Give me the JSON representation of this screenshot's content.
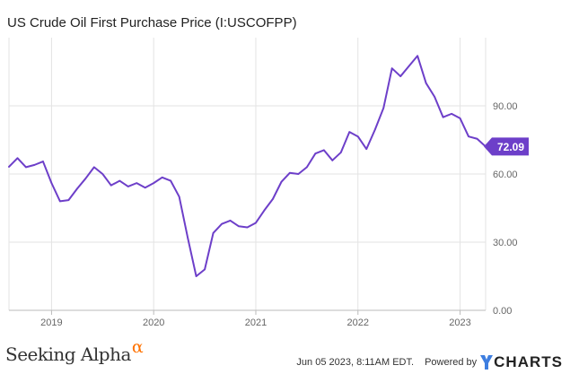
{
  "chart_data": {
    "type": "line",
    "title": "US Crude Oil First Purchase Price (I:USCOFPP)",
    "series": [
      {
        "name": "US Crude Oil First Purchase Price",
        "color": "#6d3fc9",
        "x": [
          2018.5833,
          2018.6667,
          2018.75,
          2018.8333,
          2018.9167,
          2019.0,
          2019.0833,
          2019.1667,
          2019.25,
          2019.3333,
          2019.4167,
          2019.5,
          2019.5833,
          2019.6667,
          2019.75,
          2019.8333,
          2019.9167,
          2020.0,
          2020.0833,
          2020.1667,
          2020.25,
          2020.3333,
          2020.4167,
          2020.5,
          2020.5833,
          2020.6667,
          2020.75,
          2020.8333,
          2020.9167,
          2021.0,
          2021.0833,
          2021.1667,
          2021.25,
          2021.3333,
          2021.4167,
          2021.5,
          2021.5833,
          2021.6667,
          2021.75,
          2021.8333,
          2021.9167,
          2022.0,
          2022.0833,
          2022.1667,
          2022.25,
          2022.3333,
          2022.4167,
          2022.5,
          2022.5833,
          2022.6667,
          2022.75,
          2022.8333,
          2022.9167,
          2023.0,
          2023.0833,
          2023.1667,
          2023.25
        ],
        "values": [
          63.2,
          67.0,
          63.0,
          64.0,
          65.5,
          56.0,
          48.0,
          48.5,
          53.5,
          58.0,
          63.0,
          60.0,
          55.0,
          57.0,
          54.5,
          56.0,
          54.0,
          56.0,
          58.5,
          57.0,
          50.0,
          32.0,
          15.0,
          18.0,
          34.0,
          38.0,
          39.5,
          37.0,
          36.5,
          38.5,
          44.0,
          49.0,
          56.5,
          60.5,
          60.0,
          63.0,
          69.0,
          70.5,
          66.0,
          69.5,
          78.5,
          76.5,
          71.0,
          79.5,
          89.0,
          106.5,
          103.0,
          107.5,
          112.0,
          100.0,
          94.0,
          85.0,
          86.5,
          84.5,
          76.5,
          75.5,
          72.09
        ]
      }
    ],
    "ylim": [
      0,
      120
    ],
    "y_ticks": [
      "0.00",
      "30.00",
      "60.00",
      "90.00"
    ],
    "y_tick_values": [
      0,
      30,
      60,
      90
    ],
    "x_ticks": [
      "2019",
      "2020",
      "2021",
      "2022",
      "2023"
    ],
    "x_tick_values": [
      2019.0,
      2020.0,
      2021.0,
      2022.0,
      2023.0
    ],
    "xlim": [
      2018.5833,
      2023.25
    ],
    "last_value_label": "72.09",
    "grid": true,
    "xlabel": "",
    "ylabel": ""
  },
  "footer": {
    "brand": "Seeking Alpha",
    "brand_mark": "α",
    "timestamp": "Jun 05 2023, 8:11AM EDT.",
    "powered_by": "Powered by",
    "logo_text": "CHARTS"
  },
  "colors": {
    "line": "#6d3fc9",
    "grid": "#e3e3e3",
    "axis_text": "#666666",
    "brand_accent": "#ff7200",
    "ycharts_accent": "#3e7ee0"
  }
}
